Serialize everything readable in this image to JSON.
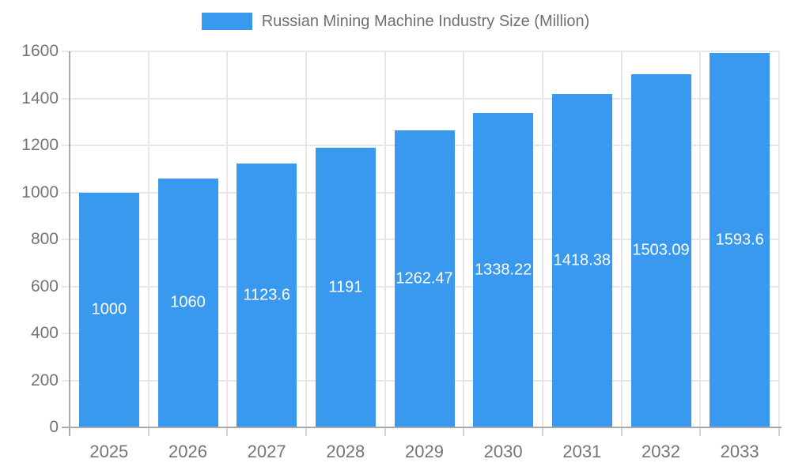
{
  "legend": {
    "label": "Russian Mining Machine Industry Size (Million)"
  },
  "colors": {
    "bar": "#3999EE",
    "bar_label": "#FFFFFF",
    "axis_line": "#A9A9A9",
    "grid_line": "#E7E7E7",
    "x_tick_line": "#D4D4D4",
    "tick_text": "#757575",
    "legend_text": "#6F6F6F",
    "background": "#FFFFFF"
  },
  "chart_data": {
    "type": "bar",
    "title": "Russian Mining Machine Industry Size (Million)",
    "categories": [
      "2025",
      "2026",
      "2027",
      "2028",
      "2029",
      "2030",
      "2031",
      "2032",
      "2033"
    ],
    "series": [
      {
        "name": "Russian Mining Machine Industry Size (Million)",
        "values": [
          1000,
          1060,
          1123.6,
          1191,
          1262.47,
          1338.22,
          1418.38,
          1503.09,
          1593.6
        ]
      }
    ],
    "value_labels": [
      "1000",
      "1060",
      "1123.6",
      "1191",
      "1262.47",
      "1338.22",
      "1418.38",
      "1503.09",
      "1593.6"
    ],
    "xlabel": "",
    "ylabel": "",
    "ylim": [
      0,
      1600
    ],
    "ytick_step": 200,
    "ytick_labels": [
      "0",
      "200",
      "400",
      "600",
      "800",
      "1000",
      "1200",
      "1400",
      "1600"
    ],
    "grid": true,
    "legend_position": "top-center",
    "value_labels_inside_bars": true
  }
}
